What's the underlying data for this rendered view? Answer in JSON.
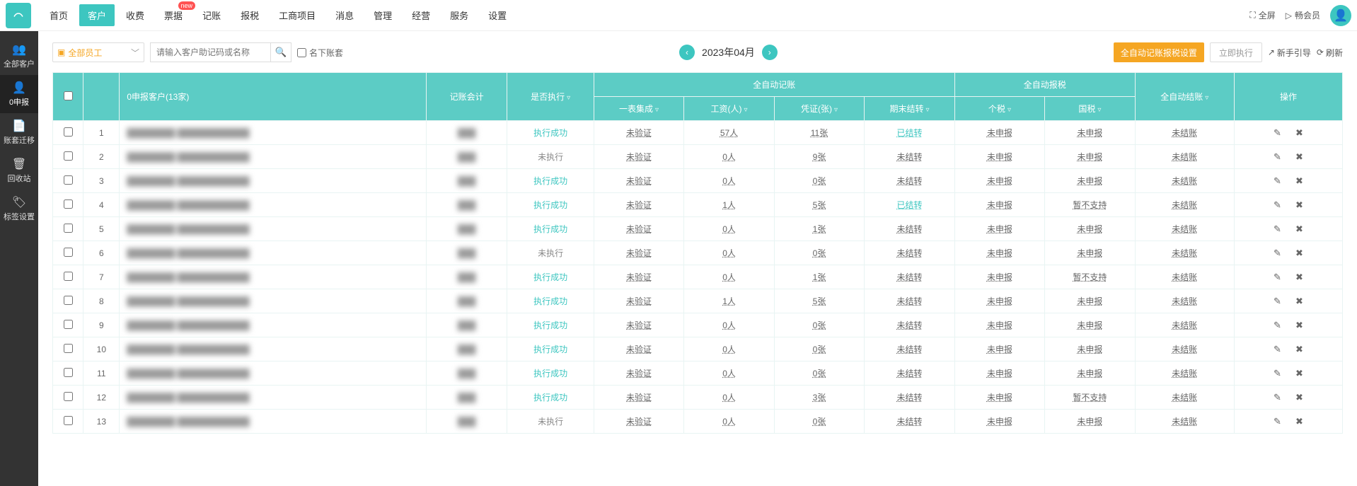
{
  "colors": {
    "brand": "#3dc6c0",
    "orange": "#f5a623",
    "header_bg": "#5cccc5",
    "border": "#e8f4f3"
  },
  "topnav": {
    "items": [
      "首页",
      "客户",
      "收费",
      "票据",
      "记账",
      "报税",
      "工商项目",
      "消息",
      "管理",
      "经营",
      "服务",
      "设置"
    ],
    "active_index": 1,
    "badge_index": 3,
    "badge_text": "new",
    "right": {
      "fullscreen": "全屏",
      "member": "畅会员"
    }
  },
  "sidebar": {
    "items": [
      {
        "icon": "👥",
        "label": "全部客户"
      },
      {
        "icon": "👤",
        "label": "0申报"
      },
      {
        "icon": "📄",
        "label": "账套迁移"
      },
      {
        "icon": "🗑",
        "label": "回收站"
      },
      {
        "icon": "🏷",
        "label": "标签设置"
      }
    ],
    "active_index": 1
  },
  "toolbar": {
    "employee_select": "全部员工",
    "search_placeholder": "请输入客户助记码或名称",
    "name_below_chk": "名下账套",
    "period": "2023年04月",
    "btn_auto": "全自动记账报税设置",
    "btn_exec": "立即执行",
    "guide": "新手引导",
    "refresh": "刷新"
  },
  "table": {
    "header": {
      "chk": "",
      "index": "",
      "customer": "0申报客户(13家)",
      "accountant": "记账会计",
      "exec": "是否执行",
      "group_book": "全自动记账",
      "group_tax": "全自动报税",
      "c1": "一表集成",
      "c2": "工资(人)",
      "c3": "凭证(张)",
      "c4": "期末结转",
      "t1": "个税",
      "t2": "国税",
      "close": "全自动结账",
      "ops": "操作"
    },
    "values": {
      "exec_success": "执行成功",
      "exec_not": "未执行",
      "unverified": "未验证",
      "not_declared": "未申报",
      "not_supported": "暂不支持",
      "not_closed": "未结账",
      "not_transferred": "未结转",
      "transferred": "已结转"
    },
    "rows": [
      {
        "idx": 1,
        "exec": "success",
        "c1": "unverified",
        "people": "57",
        "vouchers": "11",
        "transfer": "done",
        "t1": "nd",
        "t2": "nd",
        "close": "nc"
      },
      {
        "idx": 2,
        "exec": "not",
        "c1": "unverified",
        "people": "0",
        "vouchers": "9",
        "transfer": "no",
        "t1": "nd",
        "t2": "nd",
        "close": "nc"
      },
      {
        "idx": 3,
        "exec": "success",
        "c1": "unverified",
        "people": "0",
        "vouchers": "0",
        "transfer": "no",
        "t1": "nd",
        "t2": "nd",
        "close": "nc"
      },
      {
        "idx": 4,
        "exec": "success",
        "c1": "unverified",
        "people": "1",
        "vouchers": "5",
        "transfer": "done",
        "t1": "nd",
        "t2": "ns",
        "close": "nc"
      },
      {
        "idx": 5,
        "exec": "success",
        "c1": "unverified",
        "people": "0",
        "vouchers": "1",
        "transfer": "no",
        "t1": "nd",
        "t2": "nd",
        "close": "nc"
      },
      {
        "idx": 6,
        "exec": "not",
        "c1": "unverified",
        "people": "0",
        "vouchers": "0",
        "transfer": "no",
        "t1": "nd",
        "t2": "nd",
        "close": "nc"
      },
      {
        "idx": 7,
        "exec": "success",
        "c1": "unverified",
        "people": "0",
        "vouchers": "1",
        "transfer": "no",
        "t1": "nd",
        "t2": "ns",
        "close": "nc"
      },
      {
        "idx": 8,
        "exec": "success",
        "c1": "unverified",
        "people": "1",
        "vouchers": "5",
        "transfer": "no",
        "t1": "nd",
        "t2": "nd",
        "close": "nc"
      },
      {
        "idx": 9,
        "exec": "success",
        "c1": "unverified",
        "people": "0",
        "vouchers": "0",
        "transfer": "no",
        "t1": "nd",
        "t2": "nd",
        "close": "nc"
      },
      {
        "idx": 10,
        "exec": "success",
        "c1": "unverified",
        "people": "0",
        "vouchers": "0",
        "transfer": "no",
        "t1": "nd",
        "t2": "nd",
        "close": "nc"
      },
      {
        "idx": 11,
        "exec": "success",
        "c1": "unverified",
        "people": "0",
        "vouchers": "0",
        "transfer": "no",
        "t1": "nd",
        "t2": "nd",
        "close": "nc"
      },
      {
        "idx": 12,
        "exec": "success",
        "c1": "unverified",
        "people": "0",
        "vouchers": "3",
        "transfer": "no",
        "t1": "nd",
        "t2": "ns",
        "close": "nc"
      },
      {
        "idx": 13,
        "exec": "not",
        "c1": "unverified",
        "people": "0",
        "vouchers": "0",
        "transfer": "no",
        "t1": "nd",
        "t2": "nd",
        "close": "nc"
      }
    ],
    "suffix": {
      "people": "人",
      "vouchers": "张"
    }
  }
}
